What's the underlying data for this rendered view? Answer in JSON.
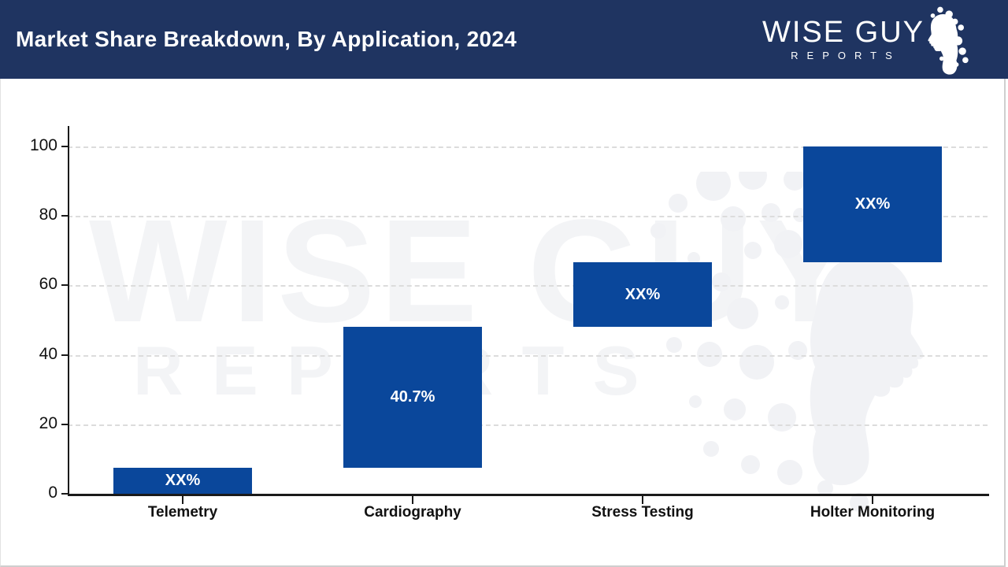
{
  "header": {
    "title": "Market Share Breakdown, By Application, 2024",
    "bg_color": "#1f3461",
    "logo": {
      "line1": "WISE GUY",
      "line2": "REPORTS"
    }
  },
  "watermark": {
    "line1": "WISE GUY",
    "line2": "R E P O R T S"
  },
  "chart_data": {
    "type": "bar",
    "variant": "floating-waterfall",
    "title": "Market Share Breakdown, By Application, 2024",
    "categories": [
      "Telemetry",
      "Cardiography",
      "Stress Testing",
      "Holter Monitoring"
    ],
    "bars": [
      {
        "category": "Telemetry",
        "from": 0,
        "to": 7.4,
        "label": "XX%"
      },
      {
        "category": "Cardiography",
        "from": 7.4,
        "to": 48.1,
        "label": "40.7%"
      },
      {
        "category": "Stress Testing",
        "from": 48.1,
        "to": 66.6,
        "label": "XX%"
      },
      {
        "category": "Holter Monitoring",
        "from": 66.6,
        "to": 100,
        "label": "XX%"
      }
    ],
    "yticks": [
      0,
      20,
      40,
      60,
      80,
      100
    ],
    "ylim": [
      0,
      105
    ],
    "xlabel": "",
    "ylabel": "",
    "grid": "horizontal-dashed",
    "legend": "none",
    "bar_color": "#0a479b",
    "bar_label_color": "#ffffff",
    "axis_color": "#1a1a1a",
    "gridline_color": "#dcdcdc"
  }
}
